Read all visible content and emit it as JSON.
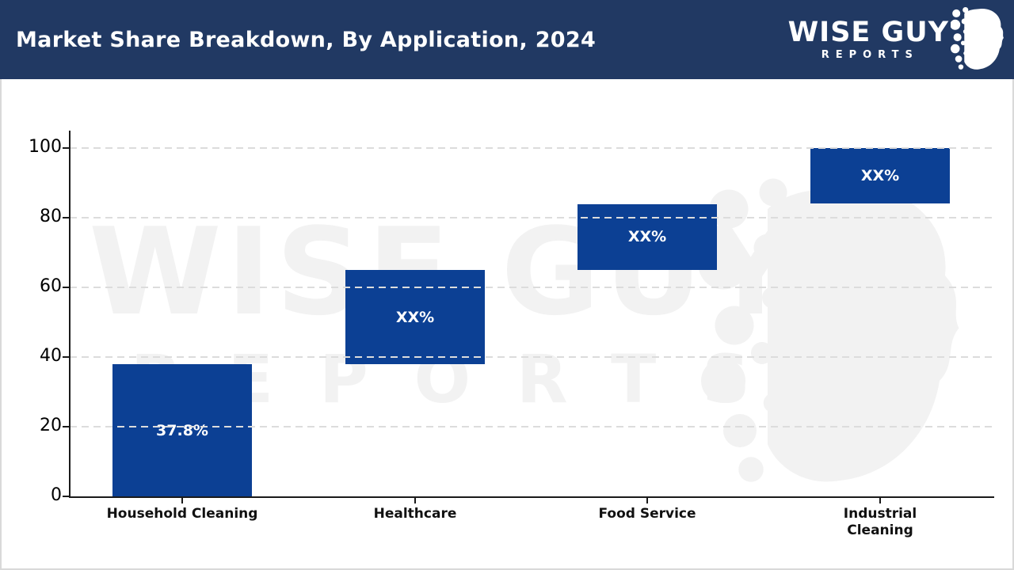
{
  "header": {
    "title": "Market Share Breakdown, By Application, 2024",
    "bg_color": "#213963",
    "logo": {
      "line1": "WISE GUY",
      "line2": "REPORTS"
    }
  },
  "watermark": {
    "line1": "WISE GUY.",
    "line2": "REPORTS"
  },
  "chart_data": {
    "type": "bar",
    "subtype": "waterfall-segments",
    "title": "Market Share Breakdown, By Application, 2024",
    "categories": [
      "Household Cleaning",
      "Healthcare",
      "Food Service",
      "Industrial\nCleaning"
    ],
    "bar_labels": [
      "37.8%",
      "XX%",
      "XX%",
      "XX%"
    ],
    "segments": [
      {
        "start": 0,
        "end": 37.8
      },
      {
        "start": 37.8,
        "end": 64.9
      },
      {
        "start": 64.9,
        "end": 83.8
      },
      {
        "start": 84.0,
        "end": 100
      }
    ],
    "xlabel": "",
    "ylabel": "",
    "ylim": [
      0,
      100
    ],
    "yticks": [
      0,
      20,
      40,
      60,
      80,
      100
    ],
    "grid": "horizontal-dashed",
    "legend": "none",
    "bar_color": "#0c4094",
    "grid_color": "#dcdcdc"
  }
}
